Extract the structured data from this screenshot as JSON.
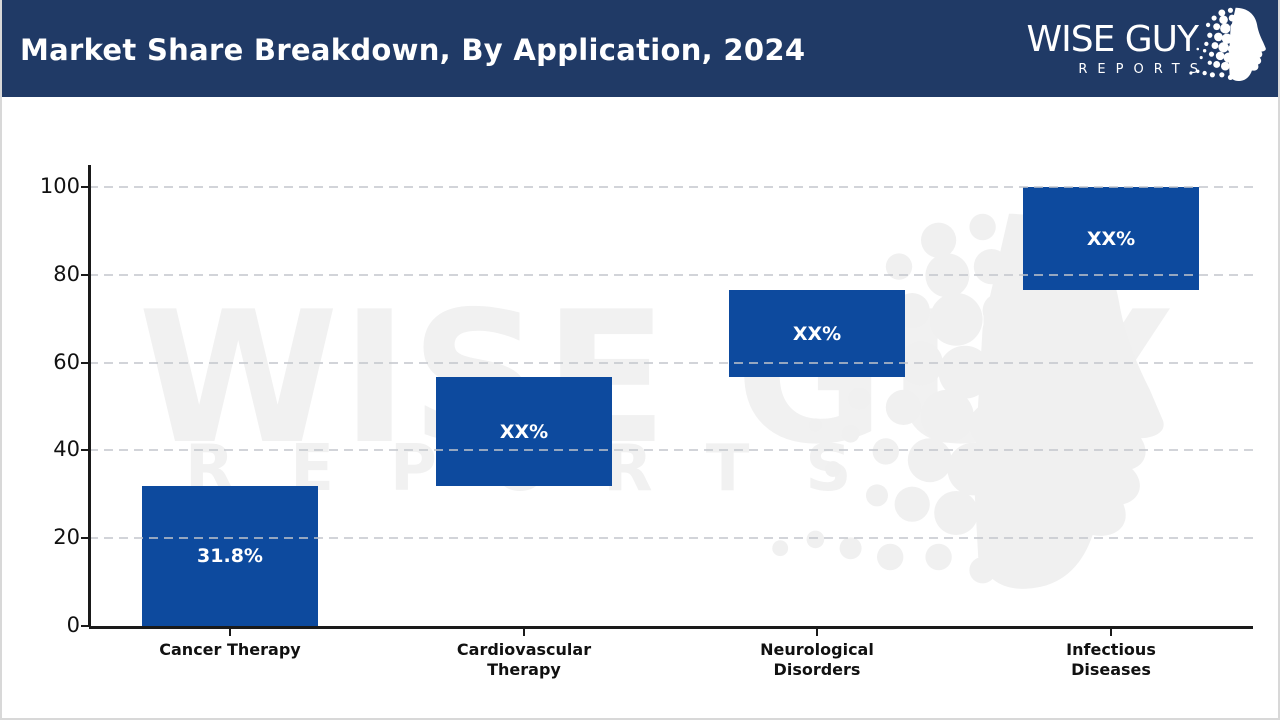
{
  "header": {
    "title": "Market Share Breakdown, By Application, 2024",
    "bg_color": "#203a66",
    "logo": {
      "line1": "WISE GUY",
      "line2": "REPORTS"
    }
  },
  "watermark": {
    "line1": "WISE GUY",
    "line2": "REPORTS"
  },
  "colors": {
    "header_bg": "#203a66",
    "bar_blue": "#0d4a9e",
    "grid_gray": "#c3c6cc",
    "watermark_gray": "#f0f0f0",
    "axis_black": "#1a1a1a"
  },
  "chart_data": {
    "type": "bar",
    "subtype": "waterfall-floating-bars",
    "title": "Market Share Breakdown, By Application, 2024",
    "categories": [
      "Cancer Therapy",
      "Cardiovascular Therapy",
      "Neurological Disorders",
      "Infectious Diseases"
    ],
    "segments": [
      {
        "category": "Cancer Therapy",
        "start": 0,
        "end": 31.8,
        "label": "31.8%"
      },
      {
        "category": "Cardiovascular Therapy",
        "start": 31.8,
        "end": 56.7,
        "label": "XX%"
      },
      {
        "category": "Neurological Disorders",
        "start": 56.7,
        "end": 76.5,
        "label": "XX%"
      },
      {
        "category": "Infectious Diseases",
        "start": 76.5,
        "end": 100,
        "label": "XX%"
      }
    ],
    "ylim": [
      0,
      100
    ],
    "yticks": [
      0,
      20,
      40,
      60,
      80,
      100
    ],
    "xlabel": "",
    "ylabel": "",
    "grid": "horizontal dashed, drawn above bars",
    "legend": "none",
    "bar_color": "#0d4a9e",
    "bar_label_color": "#ffffff"
  }
}
